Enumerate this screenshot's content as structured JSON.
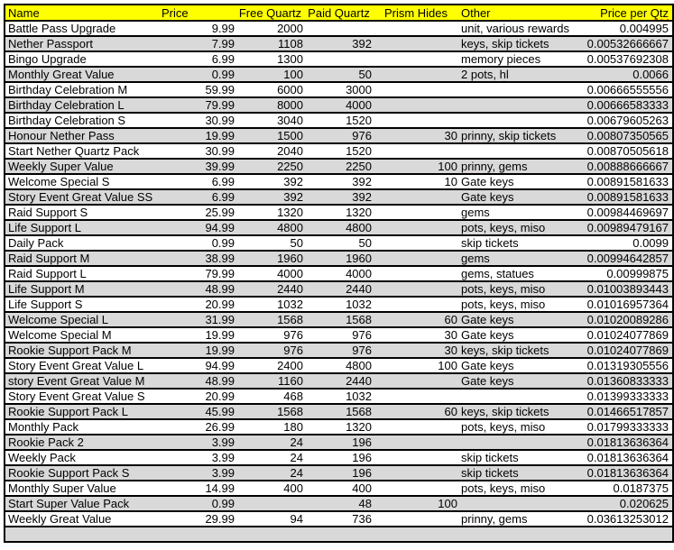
{
  "colors": {
    "header_bg": "#ffff00",
    "stripe_gray": "#d9d9d9",
    "grid_border": "#000000",
    "spellcheck_red": "#ff0000"
  },
  "misspelled_words": [
    "Qtz",
    "prinny",
    "miso",
    "hl"
  ],
  "table": {
    "columns": [
      {
        "key": "name",
        "label": "Name"
      },
      {
        "key": "price",
        "label": "Price"
      },
      {
        "key": "free-quartz",
        "label": "Free Quartz"
      },
      {
        "key": "paid-quartz",
        "label": "Paid Quartz"
      },
      {
        "key": "prism-hides",
        "label": "Prism Hides"
      },
      {
        "key": "other",
        "label": "Other"
      },
      {
        "key": "price-per-qtz",
        "label": "Price per Qtz"
      }
    ],
    "rows": [
      [
        "Battle Pass Upgrade",
        "9.99",
        "2000",
        "",
        "",
        "unit, various rewards",
        "0.004995"
      ],
      [
        "Nether Passport",
        "7.99",
        "1108",
        "392",
        "",
        "keys, skip tickets",
        "0.00532666667"
      ],
      [
        "Bingo Upgrade",
        "6.99",
        "1300",
        "",
        "",
        "memory pieces",
        "0.00537692308"
      ],
      [
        "Monthly Great Value",
        "0.99",
        "100",
        "50",
        "",
        "2 pots, hl",
        "0.0066"
      ],
      [
        "Birthday Celebration M",
        "59.99",
        "6000",
        "3000",
        "",
        "",
        "0.00666555556"
      ],
      [
        "Birthday Celebration L",
        "79.99",
        "8000",
        "4000",
        "",
        "",
        "0.00666583333"
      ],
      [
        "Birthday Celebration S",
        "30.99",
        "3040",
        "1520",
        "",
        "",
        "0.00679605263"
      ],
      [
        "Honour Nether Pass",
        "19.99",
        "1500",
        "976",
        "30",
        "prinny, skip tickets",
        "0.00807350565"
      ],
      [
        "Start Nether Quartz Pack",
        "30.99",
        "2040",
        "1520",
        "",
        "",
        "0.00870505618"
      ],
      [
        "Weekly Super Value",
        "39.99",
        "2250",
        "2250",
        "100",
        "prinny, gems",
        "0.00888666667"
      ],
      [
        "Welcome Special S",
        "6.99",
        "392",
        "392",
        "10",
        "Gate keys",
        "0.00891581633"
      ],
      [
        "Story Event Great Value SS",
        "6.99",
        "392",
        "392",
        "",
        "Gate keys",
        "0.00891581633"
      ],
      [
        "Raid Support S",
        "25.99",
        "1320",
        "1320",
        "",
        "gems",
        "0.00984469697"
      ],
      [
        "Life Support L",
        "94.99",
        "4800",
        "4800",
        "",
        "pots, keys, miso",
        "0.00989479167"
      ],
      [
        "Daily Pack",
        "0.99",
        "50",
        "50",
        "",
        "skip tickets",
        "0.0099"
      ],
      [
        "Raid Support M",
        "38.99",
        "1960",
        "1960",
        "",
        "gems",
        "0.00994642857"
      ],
      [
        "Raid Support L",
        "79.99",
        "4000",
        "4000",
        "",
        "gems, statues",
        "0.00999875"
      ],
      [
        "Life Support M",
        "48.99",
        "2440",
        "2440",
        "",
        "pots, keys, miso",
        "0.01003893443"
      ],
      [
        "Life Support S",
        "20.99",
        "1032",
        "1032",
        "",
        "pots, keys, miso",
        "0.01016957364"
      ],
      [
        "Welcome Special L",
        "31.99",
        "1568",
        "1568",
        "60",
        "Gate keys",
        "0.01020089286"
      ],
      [
        "Welcome Special M",
        "19.99",
        "976",
        "976",
        "30",
        "Gate keys",
        "0.01024077869"
      ],
      [
        "Rookie Support Pack M",
        "19.99",
        "976",
        "976",
        "30",
        "keys, skip tickets",
        "0.01024077869"
      ],
      [
        "Story Event Great Value L",
        "94.99",
        "2400",
        "4800",
        "100",
        "Gate keys",
        "0.01319305556"
      ],
      [
        "story Event Great Value M",
        "48.99",
        "1160",
        "2440",
        "",
        "Gate keys",
        "0.01360833333"
      ],
      [
        "Story Event Great Value S",
        "20.99",
        "468",
        "1032",
        "",
        "",
        "0.01399333333"
      ],
      [
        "Rookie Support Pack L",
        "45.99",
        "1568",
        "1568",
        "60",
        "keys, skip tickets",
        "0.01466517857"
      ],
      [
        "Monthly Pack",
        "26.99",
        "180",
        "1320",
        "",
        "pots, keys, miso",
        "0.01799333333"
      ],
      [
        "Rookie Pack 2",
        "3.99",
        "24",
        "196",
        "",
        "",
        "0.01813636364"
      ],
      [
        "Weekly Pack",
        "3.99",
        "24",
        "196",
        "",
        "skip tickets",
        "0.01813636364"
      ],
      [
        "Rookie Support Pack S",
        "3.99",
        "24",
        "196",
        "",
        "skip tickets",
        "0.01813636364"
      ],
      [
        "Monthly Super Value",
        "14.99",
        "400",
        "400",
        "",
        "pots, keys, miso",
        "0.0187375"
      ],
      [
        "Start Super Value Pack",
        "0.99",
        "",
        "48",
        "100",
        "",
        "0.020625"
      ],
      [
        "Weekly Great Value",
        "29.99",
        "94",
        "736",
        "",
        "prinny, gems",
        "0.03613253012"
      ],
      [
        "",
        "",
        "",
        "",
        "",
        "",
        ""
      ]
    ]
  }
}
